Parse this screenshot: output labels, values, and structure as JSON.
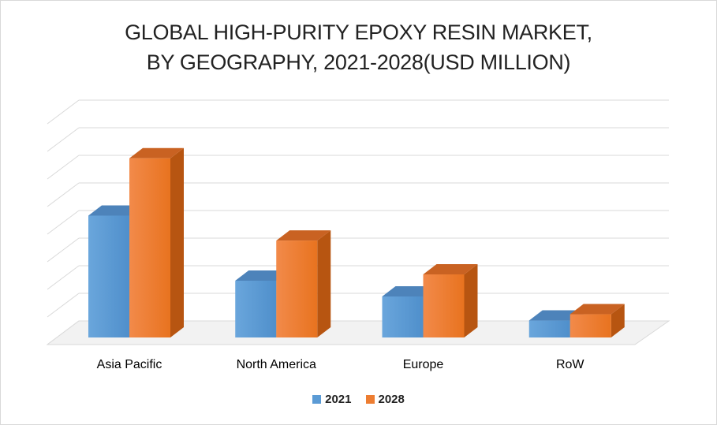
{
  "chart_data": {
    "type": "bar",
    "title_lines": [
      "GLOBAL HIGH-PURITY EPOXY RESIN MARKET,",
      "BY GEOGRAPHY, 2021-2028(USD MILLION)"
    ],
    "categories": [
      "Asia Pacific",
      "North America",
      "Europe",
      "RoW"
    ],
    "series": [
      {
        "name": "2021",
        "values": [
          42.5,
          19.8,
          14.3,
          5.9
        ],
        "color": "#5b9bd5"
      },
      {
        "name": "2028",
        "values": [
          62.5,
          33.8,
          22.0,
          8.1
        ],
        "color": "#ed7d31"
      }
    ],
    "ylim": [
      0,
      77
    ],
    "grid": true,
    "legend": "bottom",
    "style": "3d-clustered-column"
  }
}
